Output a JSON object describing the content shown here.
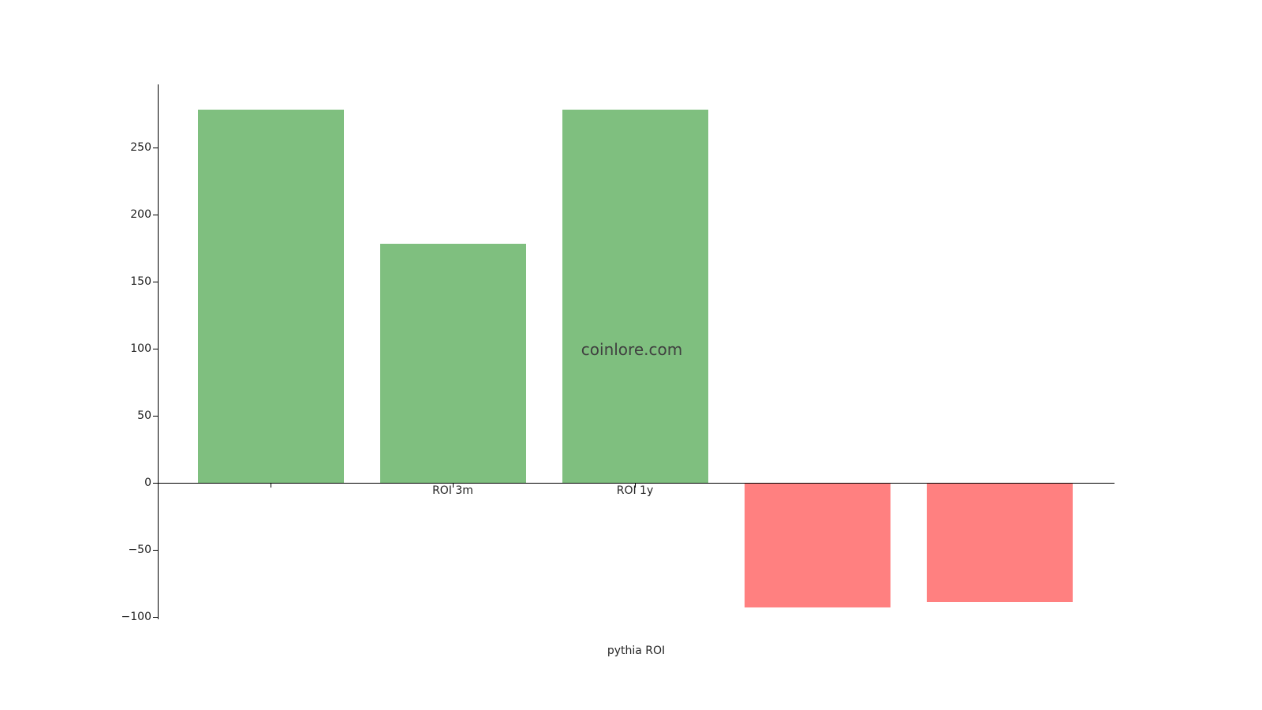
{
  "chart_data": {
    "type": "bar",
    "title": "",
    "xlabel": "pythia ROI",
    "ylabel": "",
    "watermark": "coinlore.com",
    "categories": [
      "",
      "ROI 3m",
      "ROI 1y",
      "",
      ""
    ],
    "values": [
      278,
      178,
      278,
      -93,
      -89
    ],
    "bar_colors": [
      "#7fbf7f",
      "#7fbf7f",
      "#7fbf7f",
      "#ff8080",
      "#ff8080"
    ],
    "colors": {
      "positive": "#7fbf7f",
      "negative": "#ff8080",
      "axis": "#000000",
      "text": "#262626",
      "watermark": "#404040",
      "background": "#ffffff"
    },
    "yticks": [
      {
        "label": "250",
        "value": 250
      },
      {
        "label": "200",
        "value": 200
      },
      {
        "label": "150",
        "value": 150
      },
      {
        "label": "100",
        "value": 100
      },
      {
        "label": "50",
        "value": 50
      },
      {
        "label": "0",
        "value": 0
      },
      {
        "label": "−50",
        "value": -50
      },
      {
        "label": "−100",
        "value": -100
      }
    ],
    "ylim": [
      -102,
      297
    ],
    "grid": false,
    "legend": false
  }
}
